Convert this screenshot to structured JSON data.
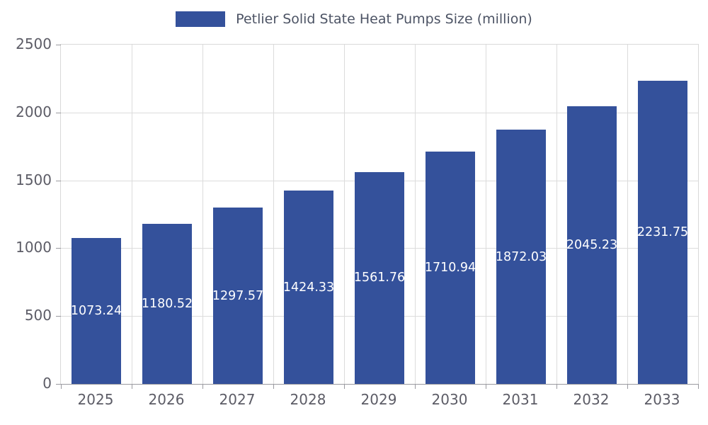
{
  "legend": {
    "label": "Petlier Solid State Heat Pumps Size (million)"
  },
  "chart_data": {
    "type": "bar",
    "title": "Petlier Solid State Heat Pumps Size (million)",
    "categories": [
      "2025",
      "2026",
      "2027",
      "2028",
      "2029",
      "2030",
      "2031",
      "2032",
      "2033"
    ],
    "values": [
      1073.24,
      1180.52,
      1297.57,
      1424.33,
      1561.76,
      1710.94,
      1872.03,
      2045.23,
      2231.75
    ],
    "value_labels": [
      "1073.24",
      "1180.52",
      "1297.57",
      "1424.33",
      "1561.76",
      "1710.94",
      "1872.03",
      "2045.23",
      "2231.75"
    ],
    "xlabel": "",
    "ylabel": "",
    "ylim": [
      0,
      2500
    ],
    "yticks": [
      0,
      500,
      1000,
      1500,
      2000,
      2500
    ],
    "grid": true,
    "legend_position": "top-center",
    "colors": {
      "bar": "#34519b",
      "grid": "#dcdcdc",
      "axis_line": "#9a9aa0",
      "tick_mark": "#9a9aa0",
      "value_text": "#ffffff",
      "tick_text": "#5c5c66",
      "legend_text": "#4c5364"
    }
  }
}
